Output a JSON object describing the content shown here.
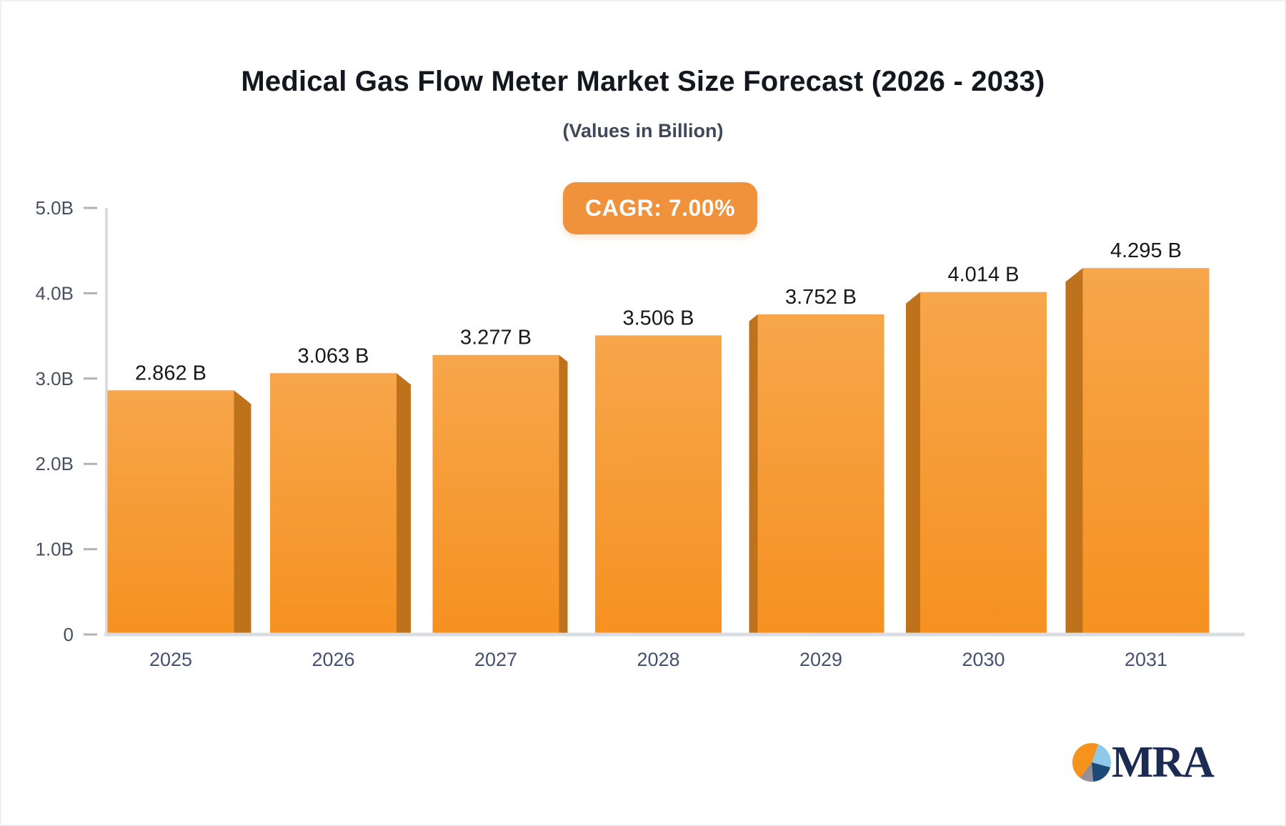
{
  "title": "Medical Gas Flow Meter Market Size Forecast (2026 - 2033)",
  "subtitle": "(Values in Billion)",
  "badge": {
    "label": "CAGR: 7.00%",
    "bg": "#F0913C"
  },
  "chart_data": {
    "type": "bar",
    "title": "Medical Gas Flow Meter Market Size Forecast (2026 - 2033)",
    "subtitle": "(Values in Billion)",
    "annotation": "CAGR: 7.00%",
    "categories": [
      "2025",
      "2026",
      "2027",
      "2028",
      "2029",
      "2030",
      "2031"
    ],
    "values": [
      2.862,
      3.063,
      3.277,
      3.506,
      3.752,
      4.014,
      4.295
    ],
    "value_labels": [
      "2.862 B",
      "3.063 B",
      "3.277 B",
      "3.506 B",
      "3.752 B",
      "4.014 B",
      "4.295 B"
    ],
    "y_ticks": [
      "0",
      "1.0B",
      "2.0B",
      "3.0B",
      "4.0B",
      "5.0B"
    ],
    "ylim": [
      0,
      5
    ],
    "xlabel": "",
    "ylabel": "",
    "grid": false,
    "legend": "none",
    "style_3d": true,
    "colors": {
      "bar_top": "#F7A64B",
      "bar_bottom": "#F69121",
      "bar_side": "#BE721C",
      "axis_line": "#D9DCE1",
      "tick_mark": "#AEB4BC",
      "tick_label": "#47505F",
      "year_label": "#465170",
      "value_label": "#15181D"
    }
  },
  "logo": {
    "text": "MRA",
    "text_color": "#1B2B52",
    "pie_blue": "#8FC9E8",
    "pie_navy": "#1B4A77",
    "pie_gray": "#93909A",
    "pie_orange": "#F6921E"
  }
}
